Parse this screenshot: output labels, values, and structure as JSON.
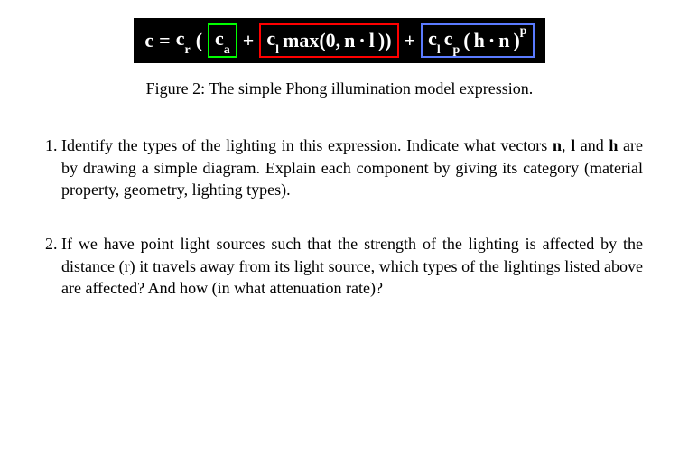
{
  "formula": {
    "lhs": "c",
    "equals": "=",
    "prefix_cr": "c",
    "prefix_cr_sub": "r",
    "open_paren": "(",
    "ambient": {
      "c": "c",
      "sub": "a",
      "box_color": "#00ff00"
    },
    "plus1": "+",
    "diffuse": {
      "cl_c": "c",
      "cl_sub": "l",
      "max_label": "max(0,",
      "n": "n",
      "dot": "·",
      "l": "l",
      "close": "))",
      "box_color": "#ff0000"
    },
    "plus2": "+",
    "specular": {
      "cl_c": "c",
      "cl_sub": "l",
      "cp_c": "c",
      "cp_sub": "p",
      "open": "(",
      "h": "h",
      "dot": "·",
      "n": "n",
      "close": ")",
      "p_sup": "p",
      "box_color": "#5b7bff"
    },
    "background": "#000000",
    "text_color": "#ffffff",
    "fontsize": 22
  },
  "caption": "Figure 2: The simple Phong illumination model expression.",
  "questions": [
    {
      "number": 1,
      "text_parts": {
        "a": "Identify the types of the lighting in this expression.  Indicate what vectors ",
        "n": "n",
        "b": ", ",
        "l": "l",
        "c": " and ",
        "h": "h",
        "d": " are by drawing a simple diagram.  Explain each component by giving its category (material property, geometry, lighting types)."
      }
    },
    {
      "number": 2,
      "text": "If we have point light sources such that the strength of the lighting is affected by the distance (r) it travels away from its light source, which types of the lightings listed above are affected? And how (in what attenuation rate)?"
    }
  ]
}
